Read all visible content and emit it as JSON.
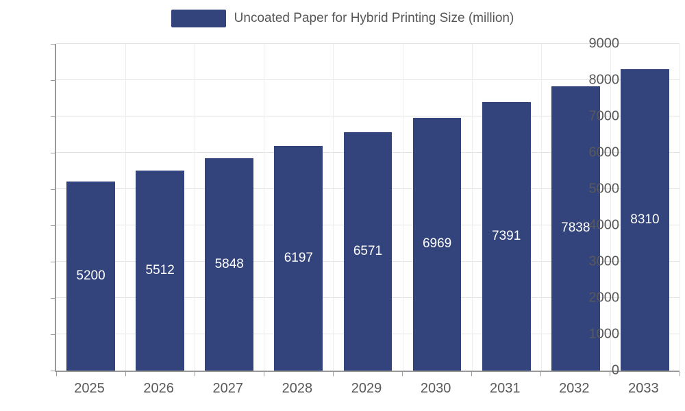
{
  "colors": {
    "bar": "#33437C",
    "grid_h": "#e3e3e3",
    "grid_v": "#ececec",
    "axis_line": "#9a9a9a",
    "axis_text": "#595959",
    "value_text": "#ffffff"
  },
  "legend": {
    "label": "Uncoated Paper for Hybrid Printing Size (million)"
  },
  "chart_data": {
    "type": "bar",
    "title": "Uncoated Paper for Hybrid Printing Size (million)",
    "categories": [
      "2025",
      "2026",
      "2027",
      "2028",
      "2029",
      "2030",
      "2031",
      "2032",
      "2033"
    ],
    "values": [
      5200,
      5512,
      5848,
      6197,
      6571,
      6969,
      7391,
      7838,
      8310
    ],
    "xlabel": "",
    "ylabel": "",
    "ylim": [
      0,
      9000
    ],
    "yticks": [
      0,
      1000,
      2000,
      3000,
      4000,
      5000,
      6000,
      7000,
      8000,
      9000
    ],
    "grid": true,
    "legend_position": "top",
    "value_labels": "inside-center"
  }
}
